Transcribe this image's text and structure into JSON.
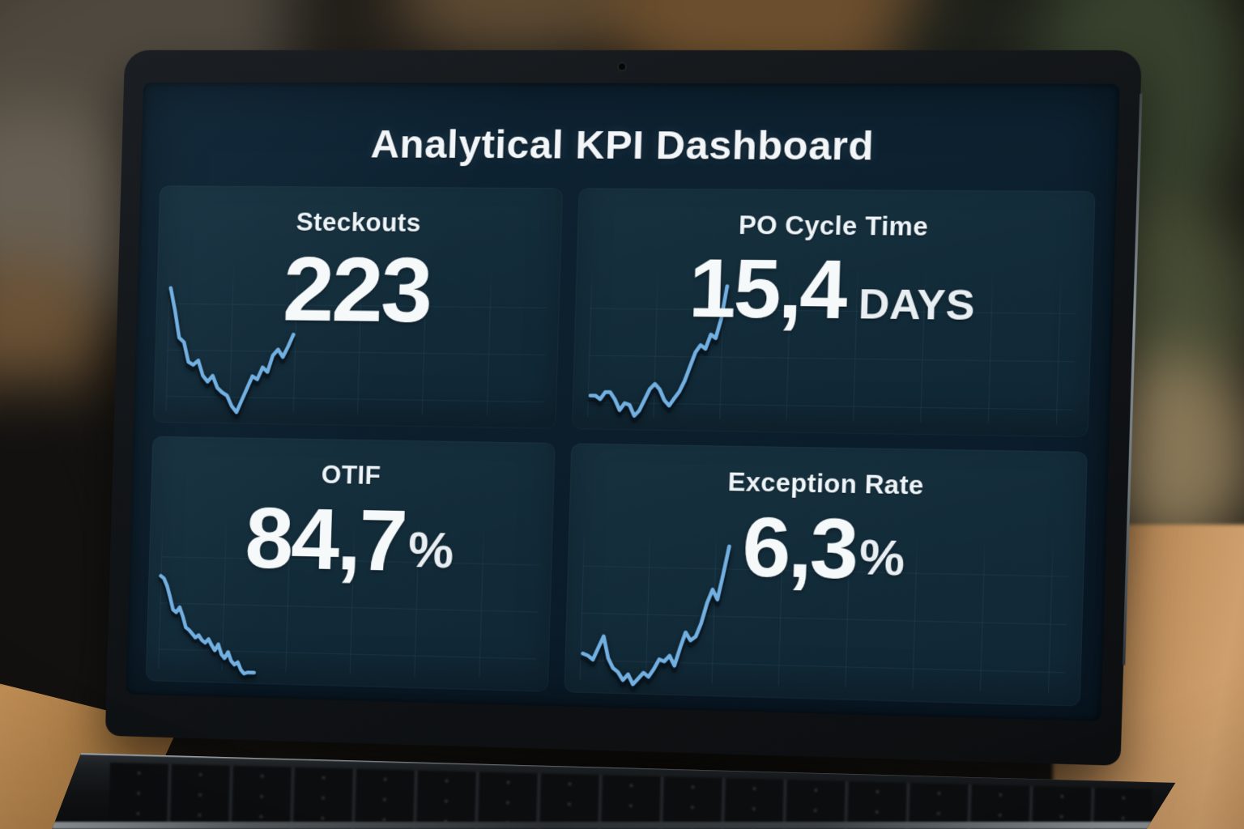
{
  "page": {
    "title": "Analytical KPI Dashboard"
  },
  "colors": {
    "accent_line": "#72b0e2",
    "card_background": "#132c3a",
    "screen_background": "#0c1f2d",
    "text_primary": "#f3f6f8"
  },
  "chart_data": [
    {
      "type": "line",
      "title": "Steckouts",
      "display_value": "223",
      "unit": "",
      "grid": true,
      "legend": "none",
      "axis_labels": "none",
      "values_relative": [
        95,
        80,
        62,
        59,
        46,
        44,
        47,
        37,
        33,
        37,
        29,
        26,
        24,
        17,
        13,
        21,
        29,
        37,
        35,
        43,
        40,
        51,
        55,
        50,
        57,
        65
      ]
    },
    {
      "type": "line",
      "title": "PO Cycle Time",
      "display_value": "15,4",
      "unit": "DAYS",
      "grid": true,
      "legend": "none",
      "axis_labels": "none",
      "values_relative": [
        38,
        38,
        36,
        40,
        40,
        36,
        30,
        34,
        33,
        27,
        30,
        36,
        42,
        45,
        42,
        36,
        33,
        37,
        41,
        47,
        55,
        63,
        67,
        65,
        73,
        71,
        82,
        100
      ]
    },
    {
      "type": "line",
      "title": "OTIF",
      "display_value": "84,7",
      "unit": "%",
      "grid": true,
      "legend": "none",
      "axis_labels": "none",
      "values_relative": [
        93,
        91,
        85,
        76,
        66,
        64,
        68,
        61,
        52,
        50,
        47,
        44,
        46,
        42,
        40,
        43,
        38,
        34,
        39,
        31,
        28,
        33,
        26,
        23,
        25,
        19,
        16,
        17,
        17,
        17
      ]
    },
    {
      "type": "line",
      "title": "Exception Rate",
      "display_value": "6,3",
      "unit": "%",
      "grid": true,
      "legend": "none",
      "axis_labels": "none",
      "values_relative": [
        40,
        39,
        37,
        43,
        49,
        38,
        33,
        31,
        27,
        30,
        25,
        28,
        31,
        29,
        33,
        38,
        37,
        40,
        35,
        44,
        52,
        48,
        50,
        57,
        67,
        74,
        69,
        82,
        96
      ]
    }
  ]
}
